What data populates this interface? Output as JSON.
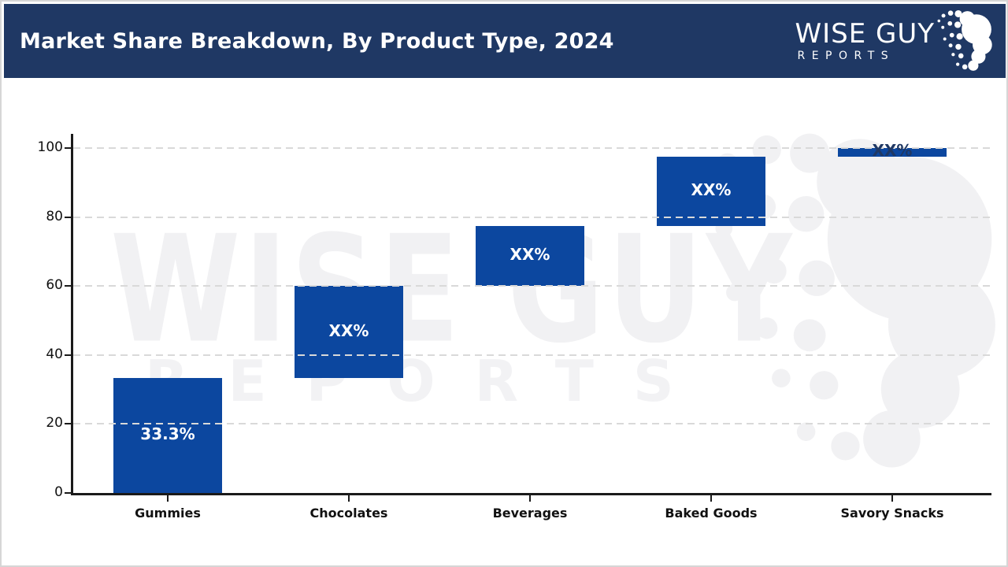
{
  "header": {
    "title": "Market Share Breakdown, By Product Type, 2024",
    "bg_color": "#1f3864",
    "text_color": "#ffffff",
    "logo": {
      "line1": "WISE GUY",
      "line2": "REPORTS"
    }
  },
  "watermark": {
    "line1": "WISE GUY",
    "line2": "REPORTS"
  },
  "chart_data": {
    "type": "bar",
    "subtype": "waterfall",
    "title": "Market Share Breakdown, By Product Type, 2024",
    "categories": [
      "Gummies",
      "Chocolates",
      "Beverages",
      "Baked Goods",
      "Savory Snacks"
    ],
    "series": [
      {
        "name": "Market Share",
        "segments": [
          {
            "category": "Gummies",
            "start": 0,
            "end": 33.3,
            "value": 33.3,
            "label": "33.3%",
            "label_color": "#ffffff"
          },
          {
            "category": "Chocolates",
            "start": 33.3,
            "end": 60,
            "value": 26.7,
            "label": "XX%",
            "label_color": "#ffffff"
          },
          {
            "category": "Beverages",
            "start": 60,
            "end": 77.5,
            "value": 17.5,
            "label": "XX%",
            "label_color": "#ffffff"
          },
          {
            "category": "Baked Goods",
            "start": 77.5,
            "end": 97.5,
            "value": 20,
            "label": "XX%",
            "label_color": "#ffffff"
          },
          {
            "category": "Savory Snacks",
            "start": 97.5,
            "end": 100,
            "value": 2.5,
            "label": "XX%",
            "label_color": "#1f3864"
          }
        ]
      }
    ],
    "xlabel": "",
    "ylabel": "",
    "ylim": [
      0,
      105
    ],
    "yticks": [
      0,
      20,
      40,
      60,
      80,
      100
    ],
    "grid": "horizontal-dashed",
    "legend": "none",
    "bar_color": "#0c479f",
    "gridline_color": "#d9d9d9",
    "axis_color": "#1a1a1a"
  }
}
